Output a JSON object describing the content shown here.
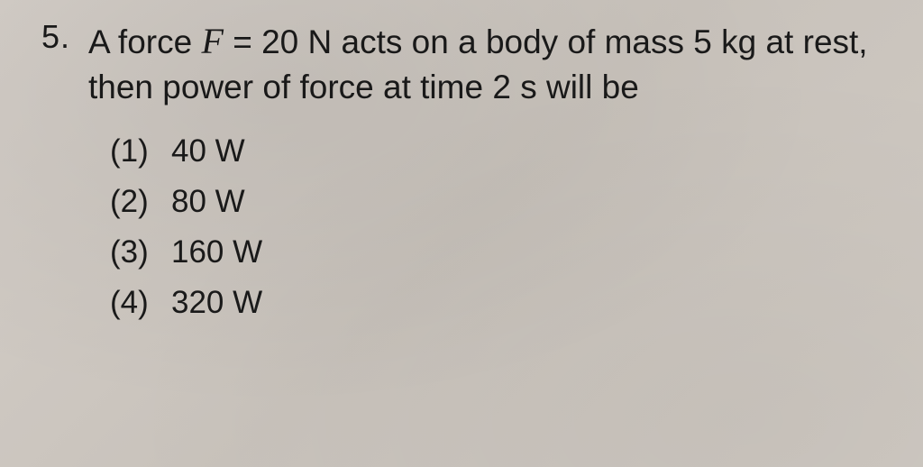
{
  "question": {
    "number": "5.",
    "text_prefix": "A force",
    "force_symbol": "F",
    "equals": "= 20 N acts on a body of mass 5 kg at rest, then power of force at time 2 s will be",
    "options": [
      {
        "marker": "(1)",
        "text": "40 W"
      },
      {
        "marker": "(2)",
        "text": "80 W"
      },
      {
        "marker": "(3)",
        "text": "160 W"
      },
      {
        "marker": "(4)",
        "text": "320 W"
      }
    ]
  },
  "style": {
    "background_color": "#cfc9c2",
    "text_color": "#1a1a1a",
    "q_number_fontsize": 36,
    "q_text_fontsize": 37,
    "option_fontsize": 35,
    "italic_symbol_fontsize": 40,
    "font_family": "Arial, Helvetica, sans-serif",
    "italic_font_family": "Times New Roman, serif"
  }
}
